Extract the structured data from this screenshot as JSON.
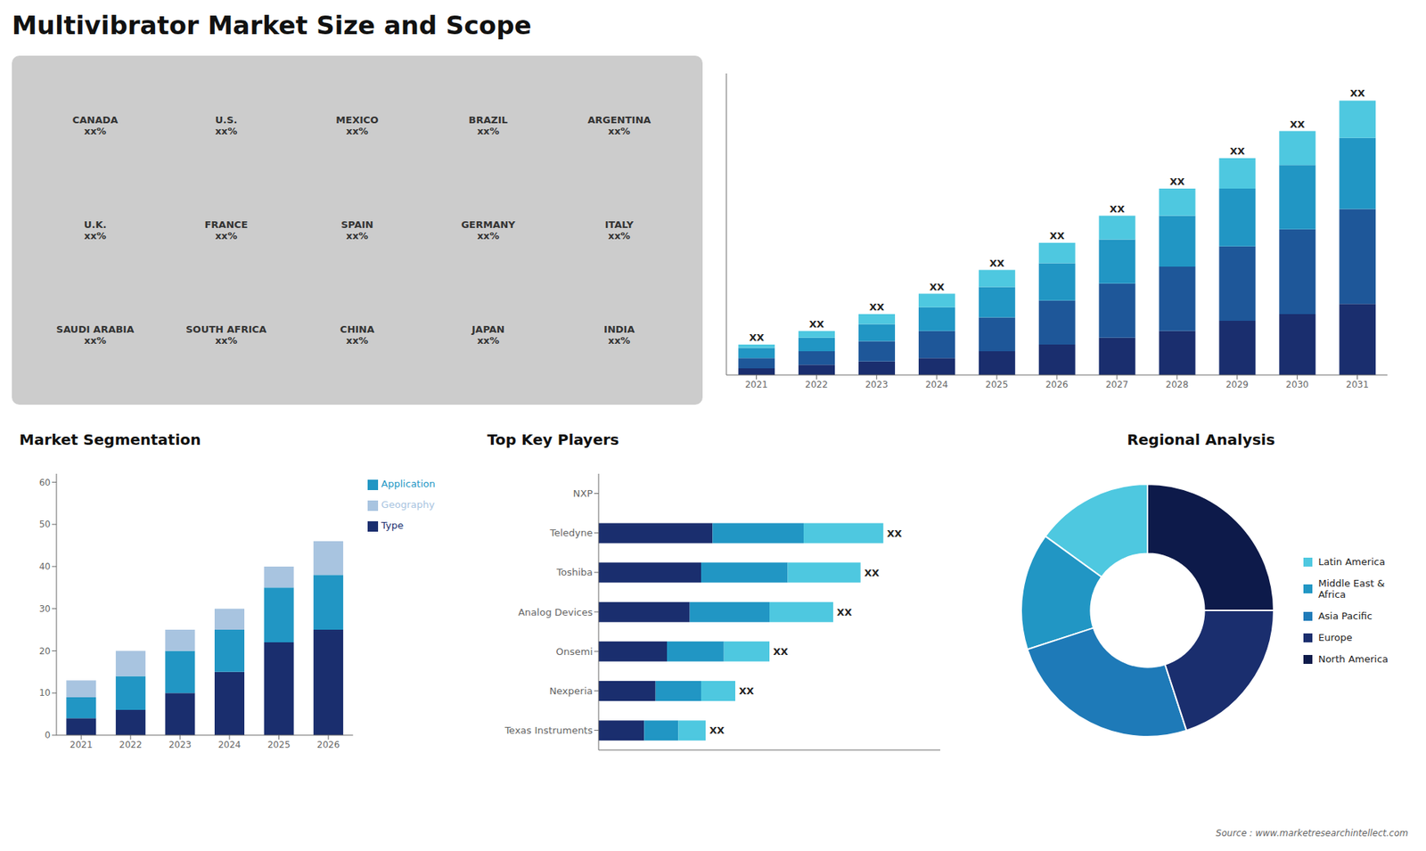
{
  "title": "Multivibrator Market Size and Scope",
  "annotations": [
    "Source : www.marketresearchintellect.com"
  ],
  "chart_data": [
    {
      "type": "map",
      "color": "#cccccc",
      "annotations": [
        "CANADA\nxx%",
        "U.S.\nxx%",
        "MEXICO\nxx%",
        "BRAZIL\nxx%",
        "ARGENTINA\nxx%",
        "U.K.\nxx%",
        "FRANCE\nxx%",
        "SPAIN\nxx%",
        "GERMANY\nxx%",
        "ITALY\nxx%",
        "SAUDI ARABIA\nxx%",
        "SOUTH AFRICA\nxx%",
        "CHINA\nxx%",
        "JAPAN\nxx%",
        "INDIA\nxx%"
      ]
    },
    {
      "type": "bar",
      "stacked": true,
      "categories": [
        "2021",
        "2022",
        "2023",
        "2024",
        "2025",
        "2026",
        "2027",
        "2028",
        "2029",
        "2030",
        "2031"
      ],
      "series": [
        {
          "color": "#1a2e6e",
          "values": [
            2,
            3,
            4,
            5,
            7,
            9,
            11,
            13,
            16,
            18,
            21
          ]
        },
        {
          "color": "#1e5799",
          "values": [
            3,
            4,
            6,
            8,
            10,
            13,
            16,
            19,
            22,
            25,
            28
          ]
        },
        {
          "color": "#2196c4",
          "values": [
            3,
            4,
            5,
            7,
            9,
            11,
            13,
            15,
            17,
            19,
            21
          ]
        },
        {
          "color": "#4ec8e0",
          "values": [
            1,
            2,
            3,
            4,
            5,
            6,
            7,
            8,
            9,
            10,
            11
          ]
        }
      ],
      "annotations": [
        "XX",
        "XX",
        "XX",
        "XX",
        "XX",
        "XX",
        "XX",
        "XX",
        "XX",
        "XX",
        "XX"
      ],
      "ylim": [
        0,
        89
      ],
      "tick_labels": "x",
      "grid": false
    },
    {
      "type": "bar",
      "stacked": true,
      "title": "Market Segmentation",
      "categories": [
        "2021",
        "2022",
        "2023",
        "2024",
        "2025",
        "2026"
      ],
      "series": [
        {
          "name": "Type",
          "color": "#1a2e6e",
          "values": [
            4,
            6,
            10,
            15,
            22,
            25
          ]
        },
        {
          "name": "Application",
          "color": "#2196c4",
          "values": [
            5,
            8,
            10,
            10,
            13,
            13
          ]
        },
        {
          "name": "Geography",
          "color": "#a8c4e0",
          "values": [
            4,
            6,
            5,
            5,
            5,
            8
          ]
        }
      ],
      "ylim": [
        0,
        62
      ],
      "yticks": [
        0,
        10,
        20,
        30,
        40,
        50,
        60
      ],
      "legend": "right",
      "grid": false
    },
    {
      "type": "bar",
      "stacked": true,
      "orientation": "horizontal",
      "title": "Top Key Players",
      "categories": [
        "NXP",
        "Teledyne",
        "Toshiba",
        "Analog Devices",
        "Onsemi",
        "Nexperia",
        "Texas Instruments"
      ],
      "series": [
        {
          "color": "#1a2e6e",
          "values": [
            0,
            5,
            4.5,
            4,
            3,
            2.5,
            2
          ]
        },
        {
          "color": "#2196c4",
          "values": [
            0,
            4,
            3.8,
            3.5,
            2.5,
            2,
            1.5
          ]
        },
        {
          "color": "#4ec8e0",
          "values": [
            0,
            3.5,
            3.2,
            2.8,
            2,
            1.5,
            1.2
          ]
        }
      ],
      "annotations": [
        null,
        "XX",
        "XX",
        "XX",
        "XX",
        "XX",
        "XX"
      ],
      "xlim": [
        0,
        15
      ],
      "tick_labels": "y",
      "grid": false
    },
    {
      "type": "pie",
      "title": "Regional Analysis",
      "categories": [
        "Latin America",
        "Middle East &\nAfrica",
        "Asia Pacific",
        "Europe",
        "North America"
      ],
      "values": [
        15,
        15,
        25,
        20,
        25
      ],
      "colors": [
        "#4ec8e0",
        "#2196c4",
        "#1e7ab8",
        "#1a2e6e",
        "#0d1a4a"
      ],
      "legend": "right"
    }
  ]
}
